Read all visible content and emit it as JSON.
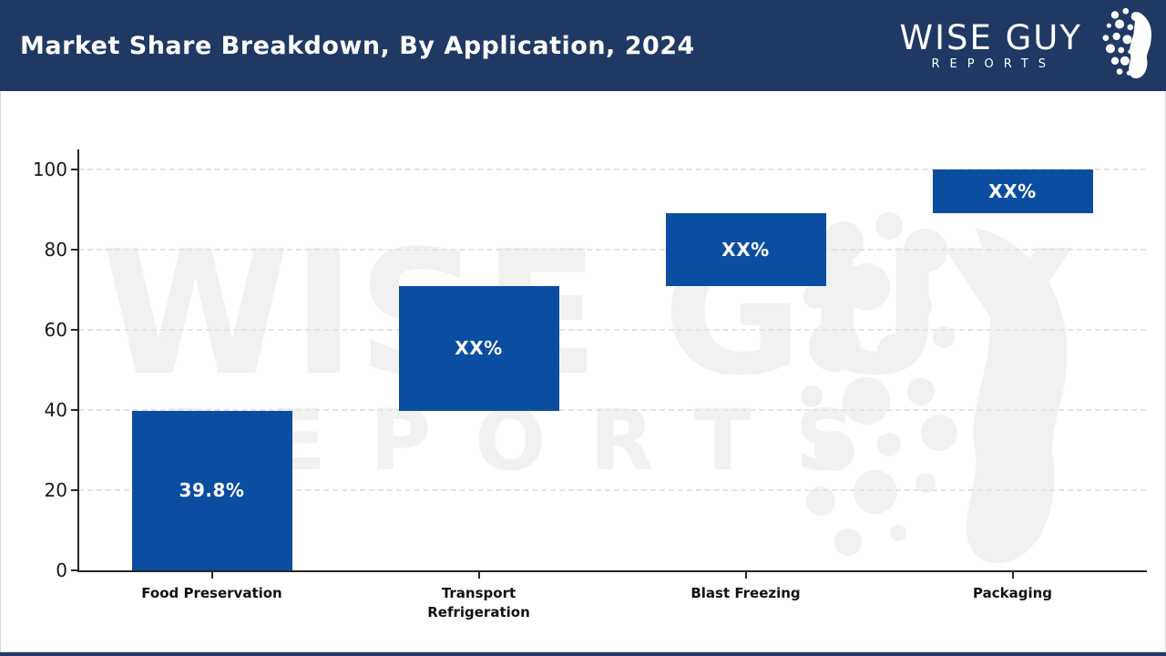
{
  "header": {
    "title": "Market Share Breakdown, By Application, 2024",
    "logo": {
      "brand_line1": "WISE GUY",
      "brand_line2": "REPORTS"
    }
  },
  "watermark": {
    "line1": "WISE GUY",
    "line2": "REPORTS"
  },
  "chart_data": {
    "type": "bar",
    "subtype": "waterfall",
    "title": "Market Share Breakdown, By Application, 2024",
    "categories": [
      "Food Preservation",
      "Transport Refrigeration",
      "Blast Freezing",
      "Packaging"
    ],
    "segments": [
      {
        "category": "Food Preservation",
        "start": 0,
        "end": 39.8,
        "label": "39.8%"
      },
      {
        "category": "Transport Refrigeration",
        "start": 39.8,
        "end": 71,
        "label": "XX%"
      },
      {
        "category": "Blast Freezing",
        "start": 71,
        "end": 89,
        "label": "XX%"
      },
      {
        "category": "Packaging",
        "start": 89,
        "end": 100,
        "label": "XX%"
      }
    ],
    "xlabel": "",
    "ylabel": "",
    "ylim": [
      0,
      100
    ],
    "yticks": [
      0,
      20,
      40,
      60,
      80,
      100
    ],
    "grid": "horizontal-dashed",
    "legend": "none",
    "bar_color": "#0b4da1",
    "bar_label_color": "#ffffff",
    "axis_color": "#262626",
    "grid_color": "#e3e3e3"
  },
  "colors": {
    "header_bg": "#1f3864",
    "footer_bg": "#1f3864",
    "watermark": "#f1f1f1"
  }
}
